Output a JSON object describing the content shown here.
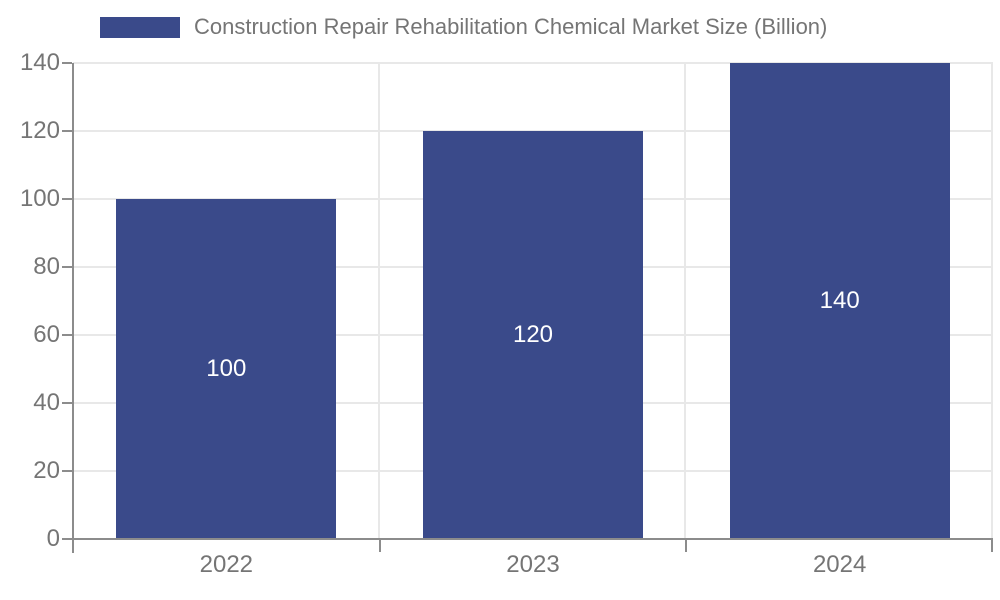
{
  "legend": {
    "label": "Construction Repair Rehabilitation Chemical Market Size (Billion)"
  },
  "chart_data": {
    "type": "bar",
    "title": "Construction Repair Rehabilitation Chemical Market Size (Billion)",
    "categories": [
      "2022",
      "2023",
      "2024"
    ],
    "values": [
      100,
      120,
      140
    ],
    "xlabel": "",
    "ylabel": "",
    "ylim": [
      0,
      140
    ],
    "yticks": [
      0,
      20,
      40,
      60,
      80,
      100,
      120,
      140
    ],
    "grid": true,
    "legend_position": "top-left",
    "data_labels_position": "inside-center",
    "colors": {
      "bar": "#3A4A8A",
      "data_label_text": "#FFFFFF",
      "axis_text": "#757575",
      "legend_text": "#757575",
      "gridline": "#E8E8E8",
      "axis_line": "#8C8C8C",
      "background": "#FFFFFF"
    }
  }
}
